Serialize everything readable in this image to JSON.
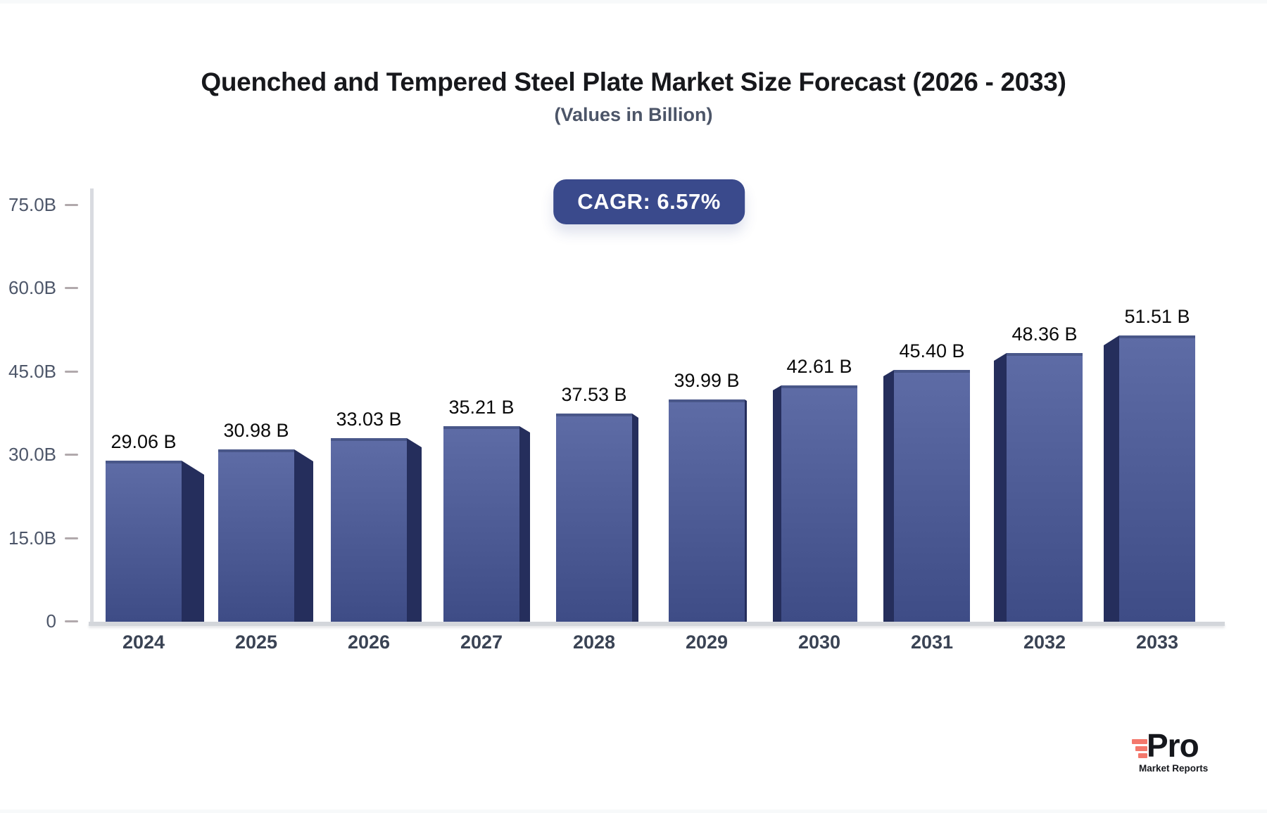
{
  "header": {
    "title": "Quenched and Tempered Steel Plate Market Size Forecast (2026 - 2033)",
    "subtitle": "(Values in Billion)",
    "cagr_badge": "CAGR: 6.57%"
  },
  "chart_data": {
    "type": "bar",
    "title": "Quenched and Tempered Steel Plate Market Size Forecast (2026 - 2033)",
    "subtitle": "(Values in Billion)",
    "annotation": "CAGR: 6.57%",
    "categories": [
      "2024",
      "2025",
      "2026",
      "2027",
      "2028",
      "2029",
      "2030",
      "2031",
      "2032",
      "2033"
    ],
    "values": [
      29.06,
      30.98,
      33.03,
      35.21,
      37.53,
      39.99,
      42.61,
      45.4,
      48.36,
      51.51
    ],
    "value_labels": [
      "29.06 B",
      "30.98 B",
      "33.03 B",
      "35.21 B",
      "37.53 B",
      "39.99 B",
      "42.61 B",
      "45.40 B",
      "48.36 B",
      "51.51 B"
    ],
    "xlabel": "",
    "ylabel": "",
    "ylim": [
      0,
      75
    ],
    "yticks": [
      {
        "value": 0,
        "label": "0"
      },
      {
        "value": 15,
        "label": "15.0B"
      },
      {
        "value": 30,
        "label": "30.0B"
      },
      {
        "value": 45,
        "label": "45.0B"
      },
      {
        "value": 60,
        "label": "60.0B"
      },
      {
        "value": 75,
        "label": "75.0B"
      }
    ],
    "grid": false,
    "legend": false,
    "bar_style": "3d",
    "colors": {
      "bar_gradient_top": "#5e6ca6",
      "bar_gradient_bottom": "#3e4c86",
      "bar_side": "#252e5c",
      "badge_background": "#3a4a8c",
      "badge_text": "#ffffff"
    }
  },
  "logo": {
    "name": "Pro",
    "tagline": "Market Reports",
    "accent_color": "#f3786c"
  }
}
